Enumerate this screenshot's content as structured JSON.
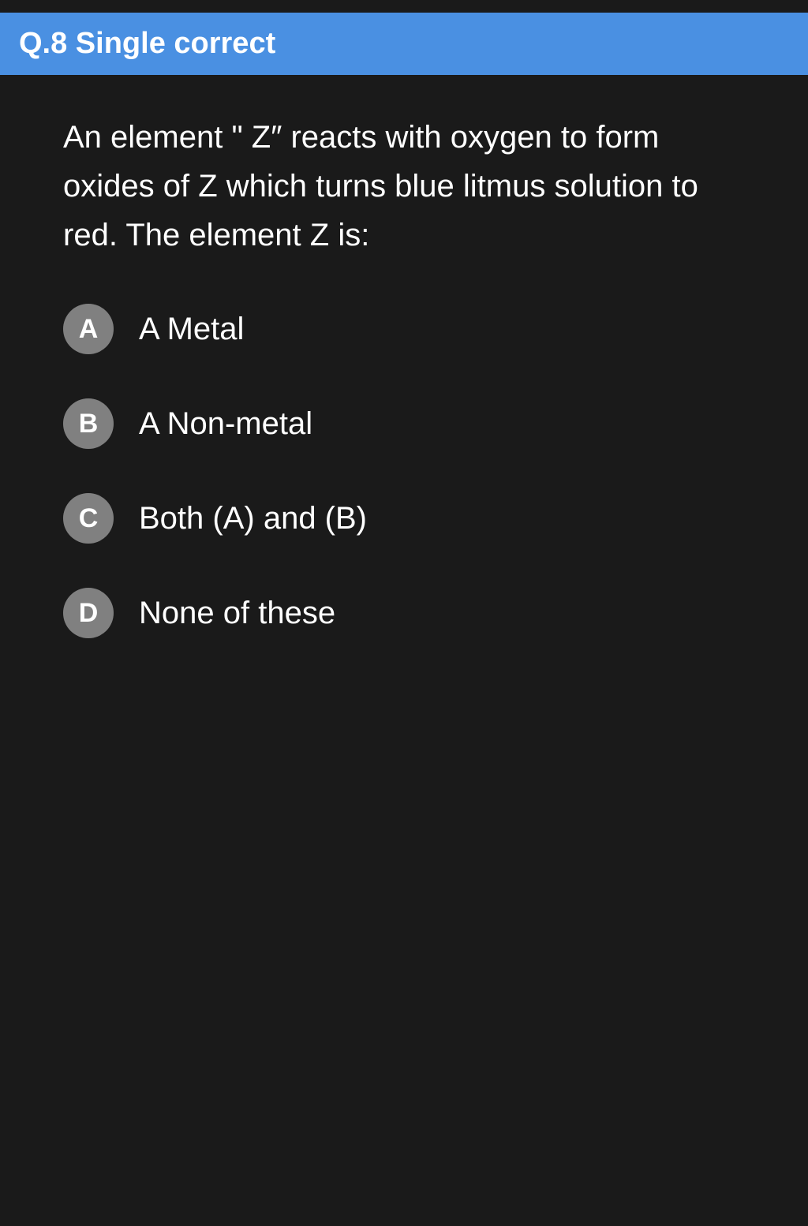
{
  "header": {
    "title": "Q.8 Single correct"
  },
  "question": {
    "text": "An element \" Z″ reacts with oxygen to form oxides of Z which turns blue litmus solution to red. The element Z is:"
  },
  "options": [
    {
      "letter": "A",
      "text": "A Metal"
    },
    {
      "letter": "B",
      "text": "A Non-metal"
    },
    {
      "letter": "C",
      "text": "Both (A) and (B)"
    },
    {
      "letter": "D",
      "text": "None of these"
    }
  ],
  "colors": {
    "header_bg": "#4a90e2",
    "body_bg": "#1a1a1a",
    "badge_bg": "#808080",
    "text": "#ffffff"
  }
}
